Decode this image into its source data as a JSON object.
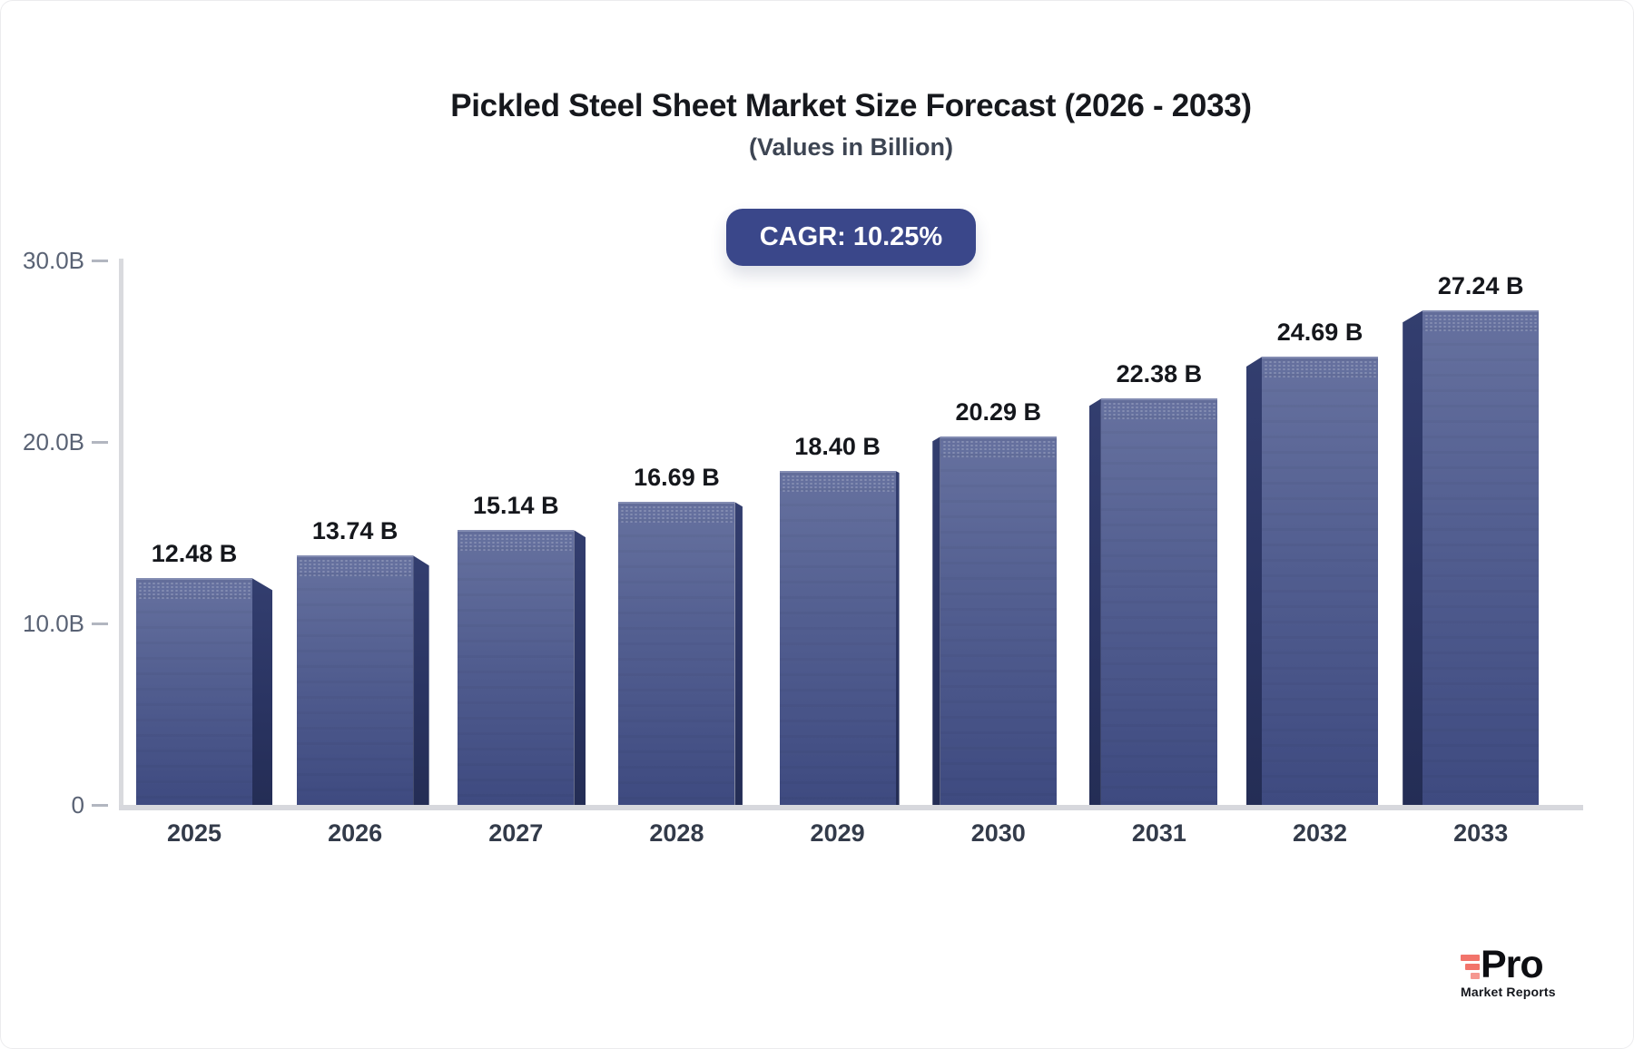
{
  "chart_data": {
    "type": "bar",
    "title": "Pickled Steel Sheet Market Size Forecast (2026 - 2033)",
    "subtitle": "(Values in Billion)",
    "badge": "CAGR: 10.25%",
    "categories": [
      "2025",
      "2026",
      "2027",
      "2028",
      "2029",
      "2030",
      "2031",
      "2032",
      "2033"
    ],
    "values": [
      12.48,
      13.74,
      15.14,
      16.69,
      18.4,
      20.29,
      22.38,
      24.69,
      27.24
    ],
    "value_labels": [
      "12.48 B",
      "13.74 B",
      "15.14 B",
      "16.69 B",
      "18.40 B",
      "20.29 B",
      "22.38 B",
      "24.69 B",
      "27.24 B"
    ],
    "y_ticks": [
      {
        "label": "30.0B",
        "value": 30
      },
      {
        "label": "20.0B",
        "value": 20
      },
      {
        "label": "10.0B",
        "value": 10
      },
      {
        "label": "0",
        "value": 0
      }
    ],
    "ylim": [
      0,
      30
    ],
    "grid": false,
    "legend": "none",
    "colors": {
      "bar_top": "#66719f",
      "bar_bottom": "#3e4a80",
      "bar_side": "#2c3664",
      "badge_bg": "#3a478a",
      "badge_text": "#ffffff",
      "axis_line": "#d9dade",
      "y_label": "#596274",
      "x_label": "#333b4a",
      "value_label": "#15171c"
    }
  },
  "logo": {
    "name": "Pro",
    "tagline": "Market Reports",
    "accent": "#f2746b"
  }
}
